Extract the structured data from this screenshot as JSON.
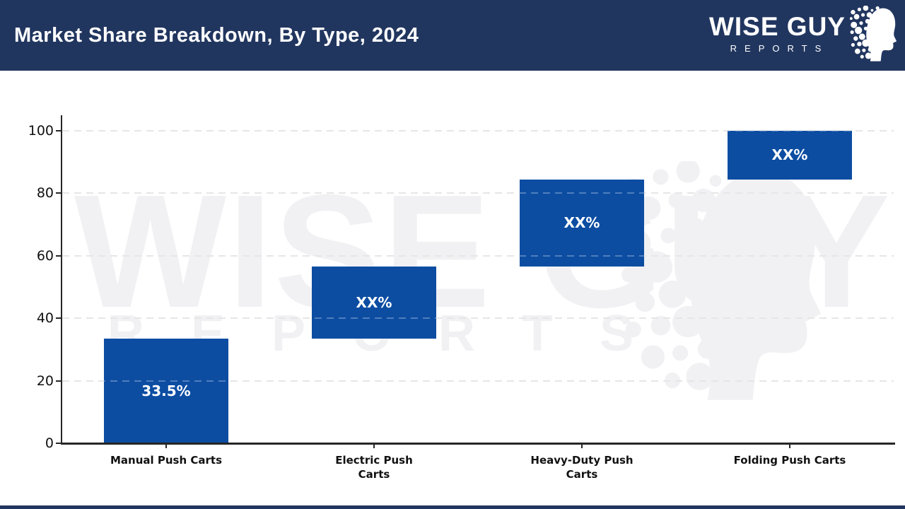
{
  "header": {
    "title": "Market Share Breakdown, By Type, 2024",
    "logo": {
      "line1": "WISE GUY",
      "line2": "REPORTS"
    }
  },
  "watermark": {
    "line1": "WISE GUY",
    "line2": "REPORTS"
  },
  "colors": {
    "header_bg": "#21365f",
    "bar": "#0c4da2",
    "grid": "#dcdcdc",
    "watermark": "#f1f1f4"
  },
  "chart_data": {
    "type": "bar",
    "subtype": "floating-waterfall",
    "title": "Market Share Breakdown, By Type, 2024",
    "categories": [
      "Manual Push Carts",
      "Electric Push\nCarts",
      "Heavy-Duty Push\nCarts",
      "Folding Push Carts"
    ],
    "series": [
      {
        "name": "Market Share %",
        "starts": [
          0,
          33.5,
          56.5,
          84.5
        ],
        "ends": [
          33.5,
          56.5,
          84.5,
          100
        ]
      }
    ],
    "bar_labels": [
      "33.5%",
      "XX%",
      "XX%",
      "XX%"
    ],
    "y_ticks": [
      0,
      20,
      40,
      60,
      80,
      100
    ],
    "ylim": [
      0,
      105
    ],
    "xlabel": "",
    "ylabel": "",
    "grid": true,
    "grid_style": "dashed",
    "legend": "none",
    "bar_color": "#0c4da2",
    "bar_label_color": "#ffffff"
  }
}
